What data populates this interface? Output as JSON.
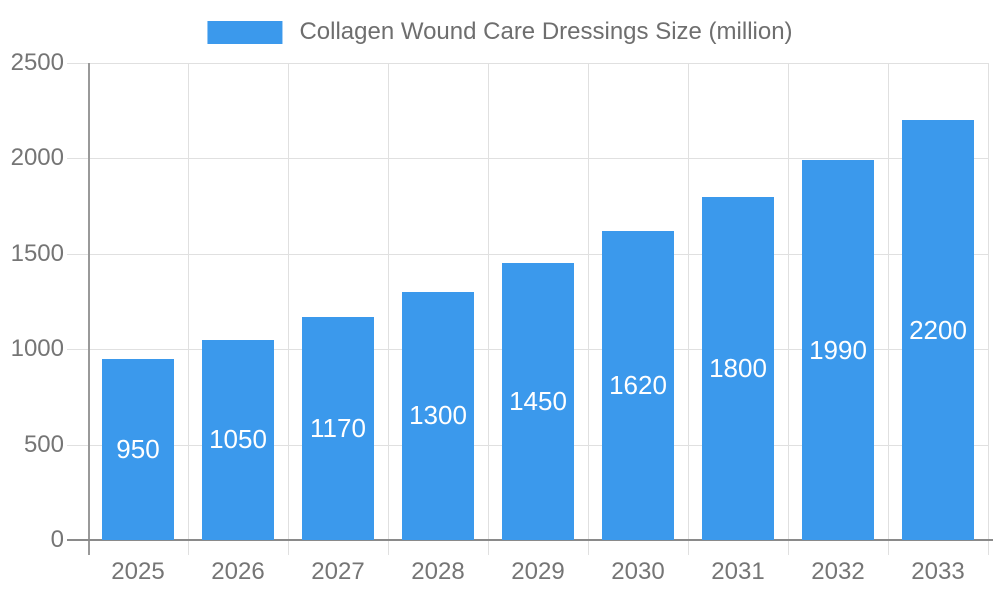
{
  "legend": {
    "label": "Collagen Wound Care Dressings Size (million)",
    "swatch_color": "#3B99EC"
  },
  "chart_data": {
    "type": "bar",
    "title": "Collagen Wound Care Dressings Size (million)",
    "categories": [
      "2025",
      "2026",
      "2027",
      "2028",
      "2029",
      "2030",
      "2031",
      "2032",
      "2033"
    ],
    "series": [
      {
        "name": "Collagen Wound Care Dressings Size (million)",
        "color": "#3B99EC",
        "values": [
          950,
          1050,
          1170,
          1300,
          1450,
          1620,
          1800,
          1990,
          2200
        ]
      }
    ],
    "xlabel": "",
    "ylabel": "",
    "ylim": [
      0,
      2500
    ],
    "yticks": [
      0,
      500,
      1000,
      1500,
      2000,
      2500
    ],
    "grid": true,
    "legend_position": "top-center",
    "value_label_position": "inside-center",
    "value_label_color": "#FFFFFF",
    "colors": {
      "bar": "#3B99EC",
      "grid_line": "#E0E0E0",
      "axis_line_y": "#999999",
      "axis_line_x": "#8A8A8A",
      "axis_text": "#757575",
      "title_text": "#6E6E6E",
      "background": "#FFFFFF"
    }
  }
}
